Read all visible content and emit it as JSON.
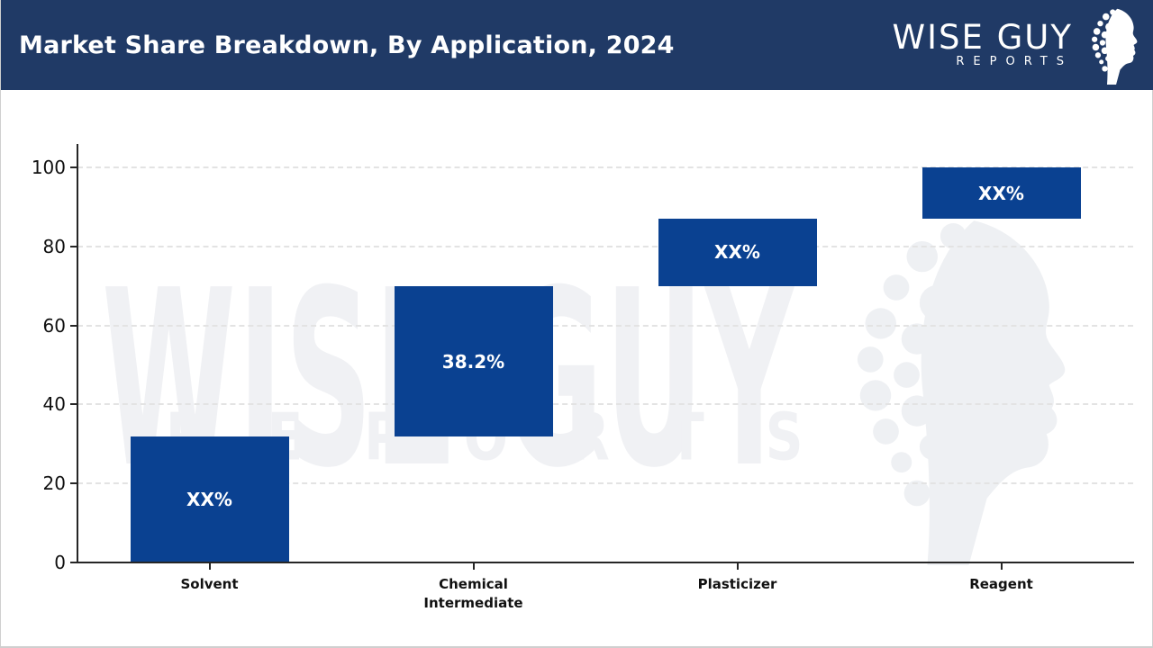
{
  "header": {
    "title": "Market Share Breakdown, By Application, 2024",
    "bg_color": "#203a66",
    "logo": {
      "line1": "WISE GUY",
      "line2": "REPORTS"
    }
  },
  "watermark": {
    "line1": "WISE GUY",
    "line2": "REPORTS"
  },
  "chart_data": {
    "type": "bar",
    "subtype": "waterfall",
    "title": "Market Share Breakdown, By Application, 2024",
    "categories": [
      "Solvent",
      "Chemical Intermediate",
      "Plasticizer",
      "Reagent"
    ],
    "segments": [
      {
        "category": "Solvent",
        "start": 0,
        "end": 31.8,
        "size": 31.8,
        "label": "XX%"
      },
      {
        "category": "Chemical Intermediate",
        "start": 31.8,
        "end": 70,
        "size": 38.2,
        "label": "38.2%"
      },
      {
        "category": "Plasticizer",
        "start": 70,
        "end": 87,
        "size": 17,
        "label": "XX%"
      },
      {
        "category": "Reagent",
        "start": 87,
        "end": 100,
        "size": 13,
        "label": "XX%"
      }
    ],
    "ylabel": "",
    "xlabel": "",
    "ylim": [
      0,
      100
    ],
    "y_ticks": [
      0,
      20,
      40,
      60,
      80,
      100
    ],
    "bar_color": "#0a4191",
    "grid": "horizontal dashed",
    "legend": "none"
  }
}
